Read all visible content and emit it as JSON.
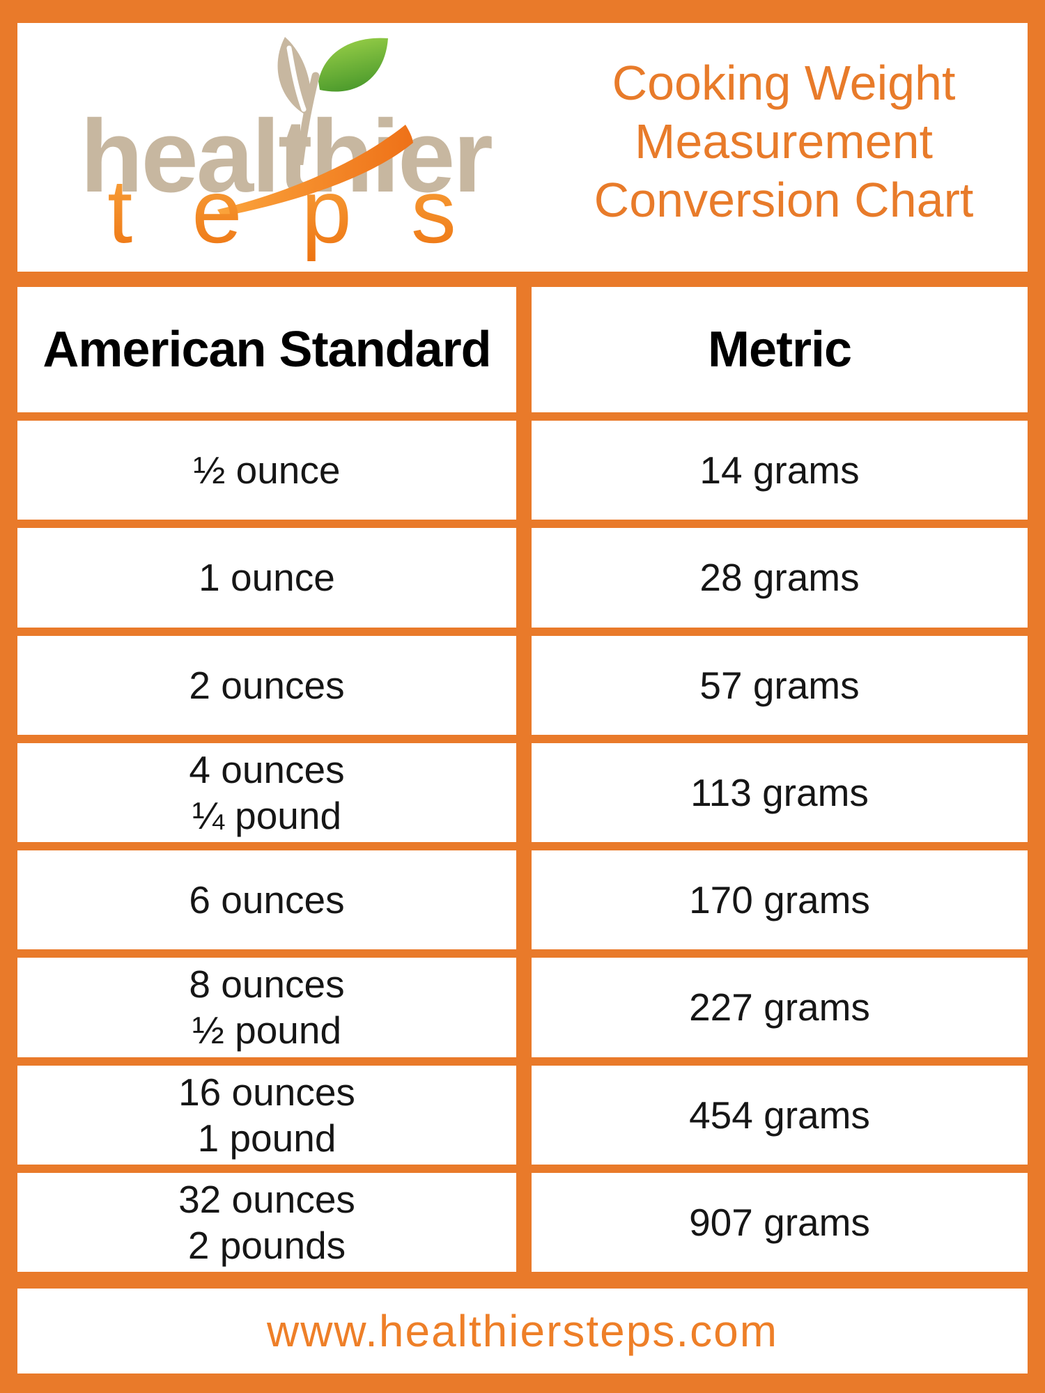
{
  "brand": {
    "logo_top": "healthier",
    "logo_bottom": "steps",
    "leaf_icon": "sprouting-leaves",
    "swoosh_icon": "upward-swoosh"
  },
  "header": {
    "title_lines": [
      "Cooking Weight",
      "Measurement",
      "Conversion Chart"
    ]
  },
  "chart_data": {
    "type": "table",
    "title": "Cooking Weight Measurement Conversion Chart",
    "columns": [
      "American Standard",
      "Metric"
    ],
    "rows": [
      [
        "½ ounce",
        "14 grams"
      ],
      [
        "1 ounce",
        "28 grams"
      ],
      [
        "2 ounces",
        "57 grams"
      ],
      [
        "4 ounces\n¼ pound",
        "113 grams"
      ],
      [
        "6 ounces",
        "170 grams"
      ],
      [
        "8 ounces\n½ pound",
        "227 grams"
      ],
      [
        "16 ounces\n1 pound",
        "454 grams"
      ],
      [
        "32 ounces\n2 pounds",
        "907 grams"
      ]
    ]
  },
  "footer": {
    "url": "www.healthiersteps.com"
  },
  "colors": {
    "accent_orange": "#E97A2A",
    "title_orange": "#E87B2A",
    "logo_beige": "#C7B7A0",
    "leaf_green_light": "#9FD34A",
    "leaf_green_dark": "#4E9C2D",
    "swoosh_orange_light": "#FBA43C",
    "swoosh_orange_dark": "#EE7118",
    "steps_orange_light": "#F9A63F",
    "steps_orange_dark": "#ED7311",
    "text_black": "#161616"
  }
}
